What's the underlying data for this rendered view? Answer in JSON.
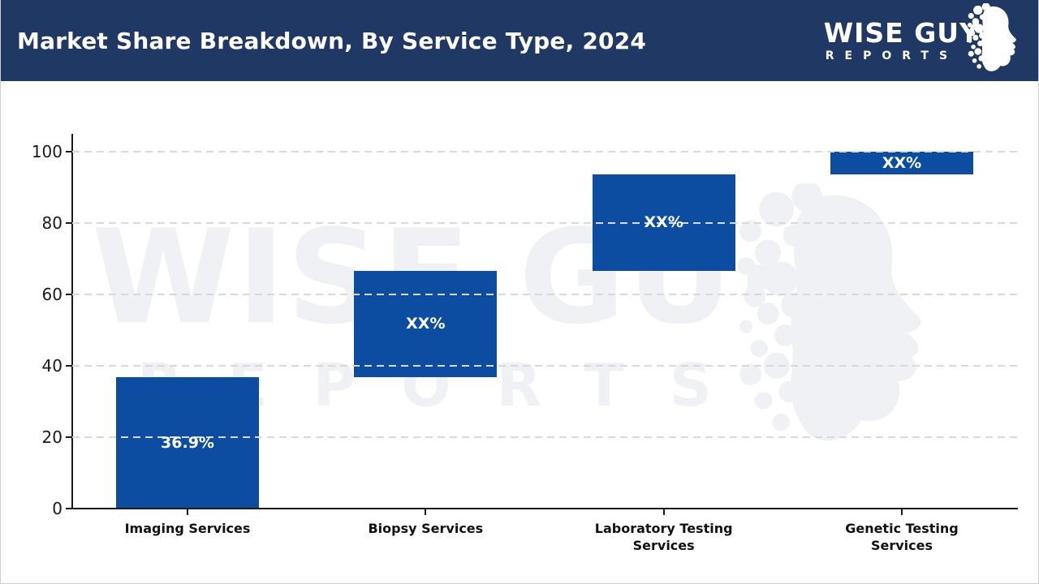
{
  "header": {
    "title": "Market Share Breakdown, By Service Type, 2024",
    "logo": {
      "wordmark": "WISE GUY",
      "subtext": "REPORTS"
    }
  },
  "watermark": {
    "wordmark": "WISE GU·Y",
    "subtext": "REPORTS"
  },
  "colors": {
    "header_bg": "#1F3864",
    "bar": "#0C4DA2",
    "bar_label": "#FFFFFF",
    "grid": "#D9D9D9",
    "axis": "#1A1A1A",
    "tick_label": "#1A1A1A",
    "watermark": "#F0F1F4"
  },
  "chart_data": {
    "type": "bar",
    "subtype": "floating-stacked-segments",
    "title": "Market Share Breakdown, By Service Type, 2024",
    "categories": [
      "Imaging Services",
      "Biopsy Services",
      "Laboratory Testing Services",
      "Genetic Testing Services"
    ],
    "segments": [
      {
        "category": "Imaging Services",
        "from": 0,
        "to": 36.9,
        "label": "36.9%"
      },
      {
        "category": "Biopsy Services",
        "from": 36.9,
        "to": 66.7,
        "label": "XX%"
      },
      {
        "category": "Laboratory Testing Services",
        "from": 66.7,
        "to": 93.6,
        "label": "XX%"
      },
      {
        "category": "Genetic Testing Services",
        "from": 93.6,
        "to": 100,
        "label": "XX%"
      }
    ],
    "ylim": [
      0,
      100
    ],
    "yticks": [
      0,
      20,
      40,
      60,
      80,
      100
    ],
    "xlabel": "",
    "ylabel": "",
    "grid": "dashed-horizontal",
    "legend": "none"
  }
}
